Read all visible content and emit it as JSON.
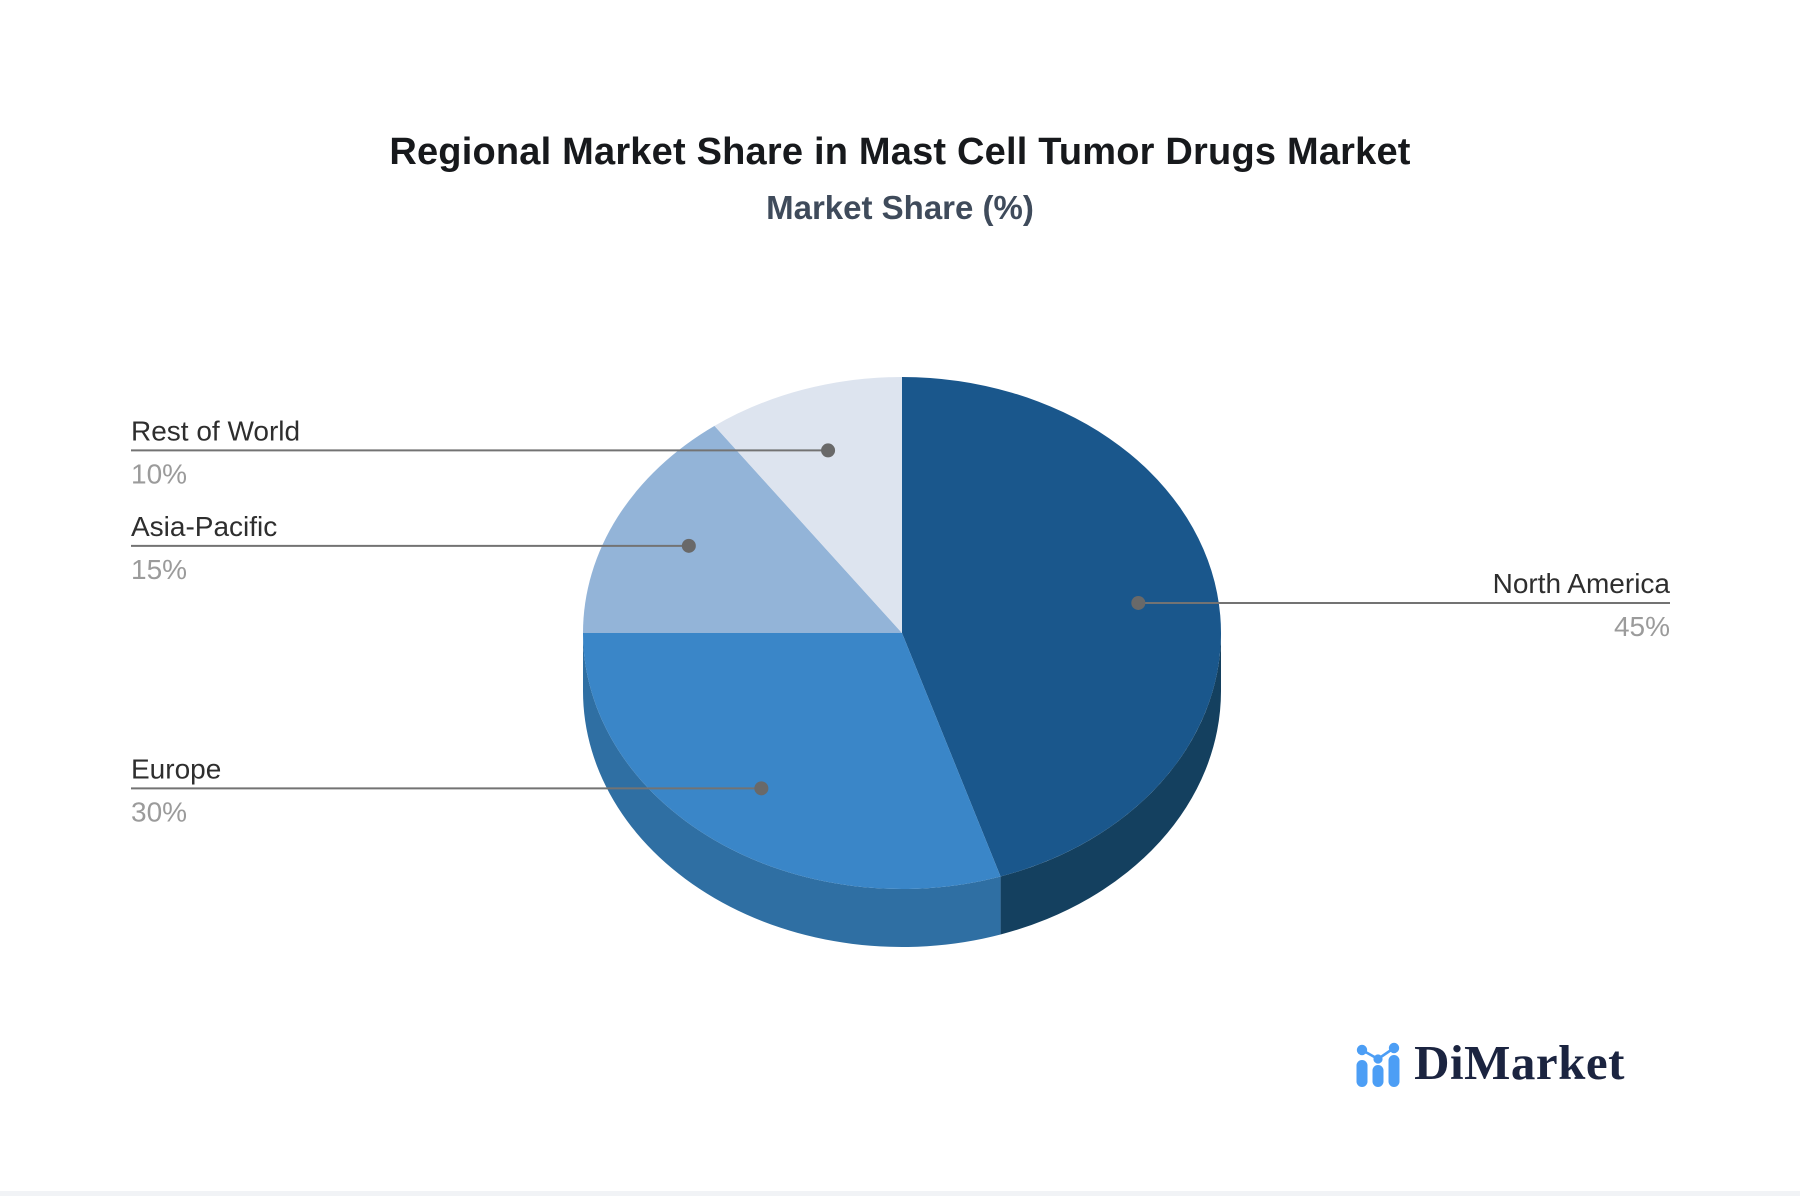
{
  "header": {
    "title": "Regional Market Share in Mast Cell Tumor Drugs Market",
    "subtitle": "Market Share (%)"
  },
  "brand": {
    "name": "DiMarket",
    "icon": "bar-chart-logo-icon",
    "icon_color": "#4C9EF5",
    "text_color": "#1B2440"
  },
  "chart_data": {
    "type": "pie",
    "style": "3d",
    "title": "Regional Market Share in Mast Cell Tumor Drugs Market",
    "subtitle": "Market Share (%)",
    "unit": "%",
    "start_angle_deg": 0,
    "direction": "clockwise",
    "categories": [
      "North America",
      "Europe",
      "Asia-Pacific",
      "Rest of World"
    ],
    "values": [
      45,
      30,
      15,
      10
    ],
    "slice_labels": [
      "45%",
      "30%",
      "15%",
      "10%"
    ],
    "colors": [
      "#1A578C",
      "#3A86C8",
      "#93B4D8",
      "#DDE4EF"
    ],
    "side_colors": [
      "#14405F",
      "#2F6FA3",
      "#7FA5CC",
      "#C8D3E3"
    ],
    "leader_line_color": "#737373",
    "leader_dot_color": "#696969",
    "label_color": "#2E2E2E",
    "value_color": "#9B9B9B",
    "background": "#FFFFFF",
    "legend": "none"
  }
}
